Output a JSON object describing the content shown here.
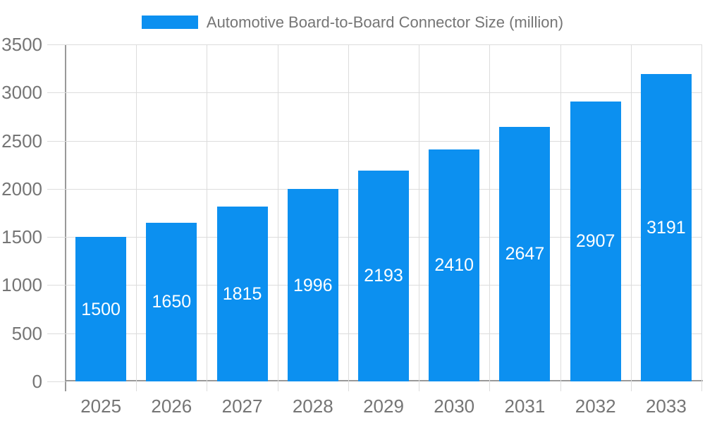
{
  "chart_data": {
    "type": "bar",
    "title": "Automotive Board-to-Board Connector Size (million)",
    "legend": {
      "position": "top",
      "label": "Automotive Board-to-Board Connector Size (million)"
    },
    "categories": [
      "2025",
      "2026",
      "2027",
      "2028",
      "2029",
      "2030",
      "2031",
      "2032",
      "2033"
    ],
    "series": [
      {
        "name": "Automotive Board-to-Board Connector Size (million)",
        "values": [
          1500,
          1650,
          1815,
          1996,
          2193,
          2410,
          2647,
          2907,
          3191
        ]
      }
    ],
    "xlabel": "",
    "ylabel": "",
    "ylim": [
      0,
      3500
    ],
    "yticks": [
      0,
      500,
      1000,
      1500,
      2000,
      2500,
      3000,
      3500
    ],
    "grid": true,
    "value_labels_inside_bars": true,
    "colors": {
      "bar": "#0c90f0",
      "axis_line": "#999999",
      "grid_line": "#dcdcdc",
      "tick_label": "#757575",
      "value_label": "#ffffff",
      "background": "#ffffff"
    }
  }
}
